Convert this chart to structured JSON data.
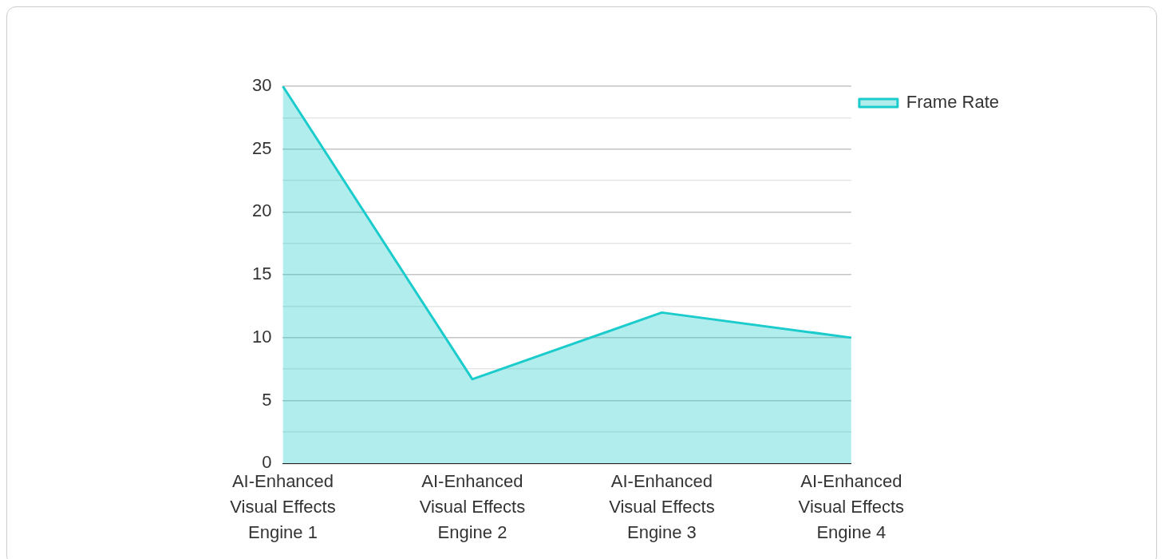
{
  "chart_data": {
    "type": "area",
    "categories": [
      "AI-Enhanced Visual Effects Engine 1",
      "AI-Enhanced Visual Effects Engine 2",
      "AI-Enhanced Visual Effects Engine 3",
      "AI-Enhanced Visual Effects Engine 4"
    ],
    "series": [
      {
        "name": "Frame Rate",
        "color": "#1ccbcb",
        "values": [
          30,
          6.7,
          12,
          10
        ]
      }
    ],
    "ylim": [
      0,
      30
    ],
    "yticks": [
      0,
      {
        "value": 2.5,
        "label": null
      },
      5,
      {
        "value": 7.5,
        "label": null
      },
      10,
      {
        "value": 12.5,
        "label": null
      },
      15,
      {
        "value": 17.5,
        "label": null
      },
      20,
      {
        "value": 22.5,
        "label": null
      },
      25,
      {
        "value": 27.5,
        "label": null
      },
      30
    ],
    "grid": "y",
    "legend": "top right",
    "marker": "none",
    "line_style": "solid"
  }
}
